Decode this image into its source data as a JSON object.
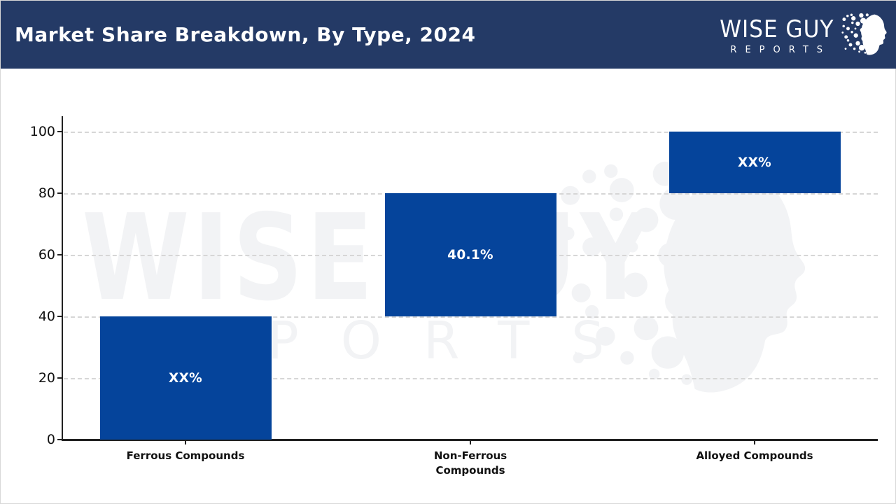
{
  "header": {
    "title": "Market Share Breakdown, By Type, 2024",
    "logo": {
      "line1": "WISE GUY",
      "line2": "REPORTS"
    }
  },
  "watermark": {
    "line1": "WISE GUY",
    "line2": "REPORTS"
  },
  "chart_data": {
    "type": "bar",
    "subtype": "waterfall",
    "title": "Market Share Breakdown, By Type, 2024",
    "categories": [
      "Ferrous Compounds",
      "Non-Ferrous Compounds",
      "Alloyed Compounds"
    ],
    "bars": [
      {
        "category": "Ferrous Compounds",
        "display": "Ferrous Compounds",
        "from": 0,
        "to": 40,
        "label": "XX%"
      },
      {
        "category": "Non-Ferrous Compounds",
        "display": "Non-Ferrous\nCompounds",
        "from": 40,
        "to": 80,
        "label": "40.1%"
      },
      {
        "category": "Alloyed Compounds",
        "display": "Alloyed Compounds",
        "from": 80,
        "to": 100,
        "label": "XX%"
      }
    ],
    "yticks": [
      0,
      20,
      40,
      60,
      80,
      100
    ],
    "ylim": [
      0,
      100
    ],
    "xlabel": "",
    "ylabel": "",
    "grid": "horizontal-dashed",
    "legend": "none",
    "bar_color": "#05449b",
    "axis_color": "#212121",
    "grid_color": "#d6d6d6",
    "header_color": "#243a66",
    "watermark_color": "#f2f3f5"
  }
}
